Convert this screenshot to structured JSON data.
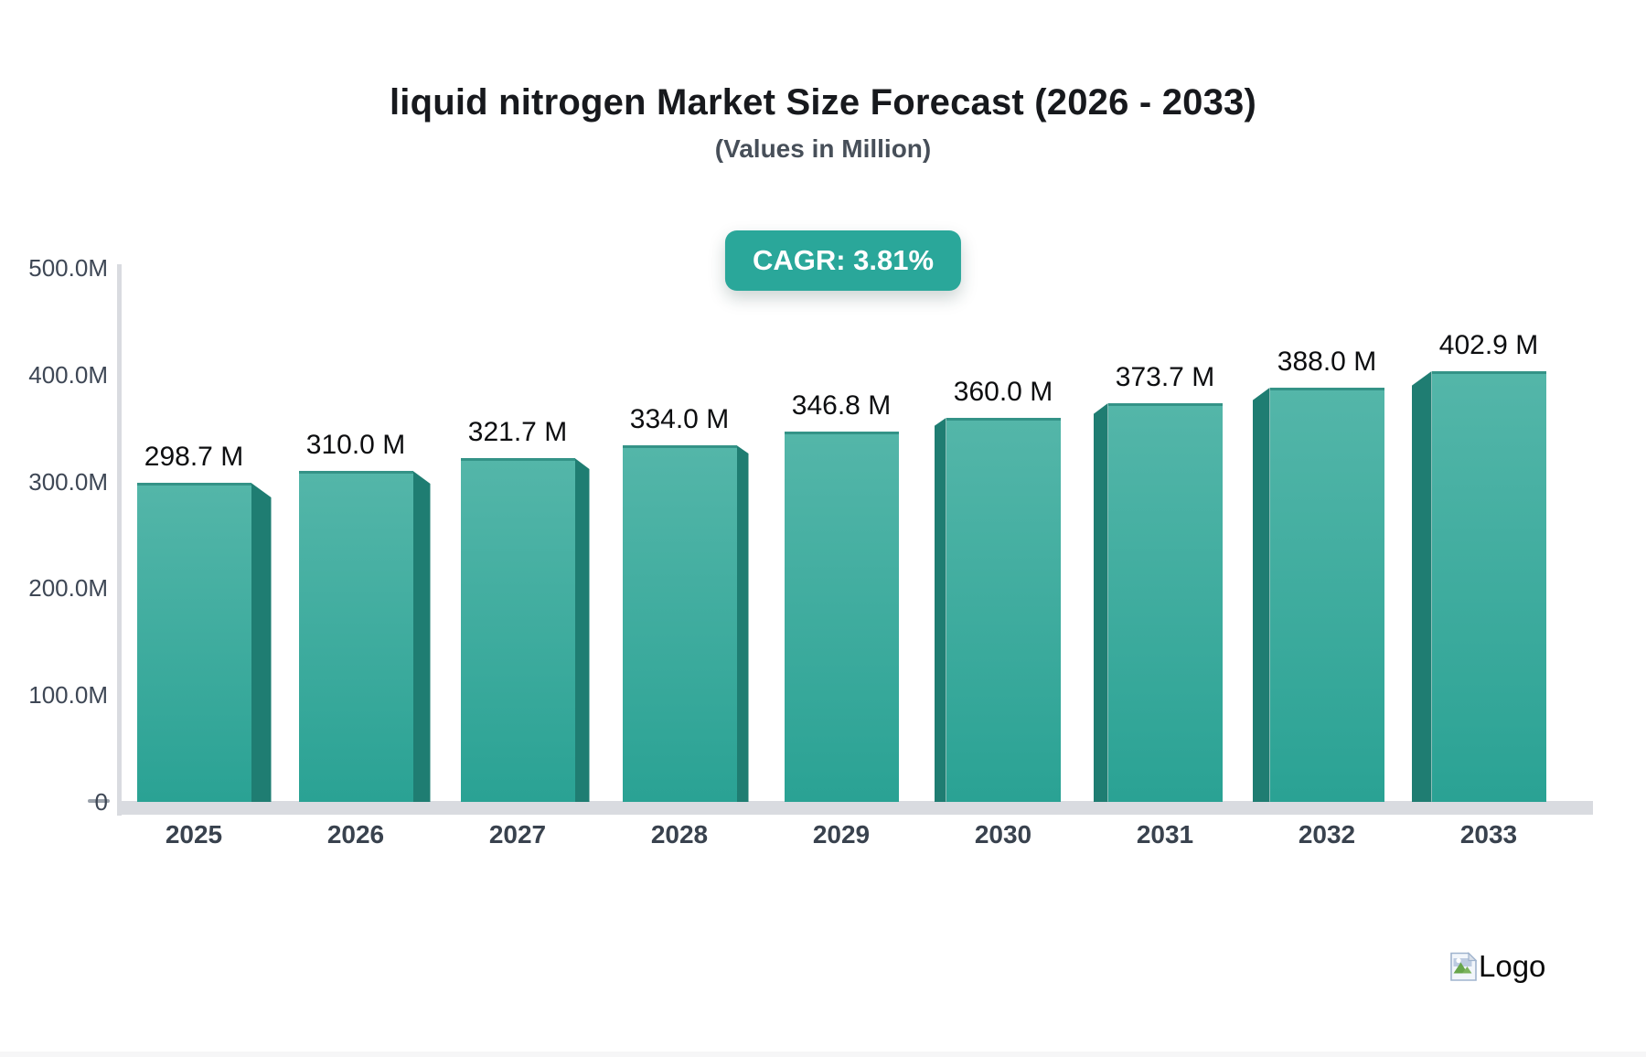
{
  "header": {
    "title": "liquid nitrogen Market Size Forecast (2026 - 2033)",
    "subtitle": "(Values in Million)"
  },
  "badge": {
    "label": "CAGR: 3.81%",
    "color": "#2aa79a"
  },
  "chart_data": {
    "type": "bar",
    "title": "liquid nitrogen Market Size Forecast (2026 - 2033)",
    "subtitle": "(Values in Million)",
    "cagr_pct": 3.81,
    "unit": "Million",
    "categories": [
      "2025",
      "2026",
      "2027",
      "2028",
      "2029",
      "2030",
      "2031",
      "2032",
      "2033"
    ],
    "values": [
      298.7,
      310.0,
      321.7,
      334.0,
      346.8,
      360.0,
      373.7,
      388.0,
      402.9
    ],
    "value_labels": [
      "298.7 M",
      "310.0 M",
      "321.7 M",
      "334.0 M",
      "346.8 M",
      "360.0 M",
      "373.7 M",
      "388.0 M",
      "402.9 M"
    ],
    "xlabel": "",
    "ylabel": "",
    "ylim": [
      0,
      500
    ],
    "grid": false,
    "legend": "none",
    "yticks": [
      {
        "label": "500.0M",
        "value": 500
      },
      {
        "label": "400.0M",
        "value": 400
      },
      {
        "label": "300.0M",
        "value": 300
      },
      {
        "label": "200.0M",
        "value": 200
      },
      {
        "label": "100.0M",
        "value": 100
      },
      {
        "label": "0",
        "value": 0
      }
    ],
    "colors": {
      "bar_top": "#54b6a9",
      "bar_bottom": "#2aa294",
      "bar_side": "#1f7d72",
      "axis": "#d9dbe0"
    }
  },
  "footer": {
    "logo_alt": "Logo"
  }
}
